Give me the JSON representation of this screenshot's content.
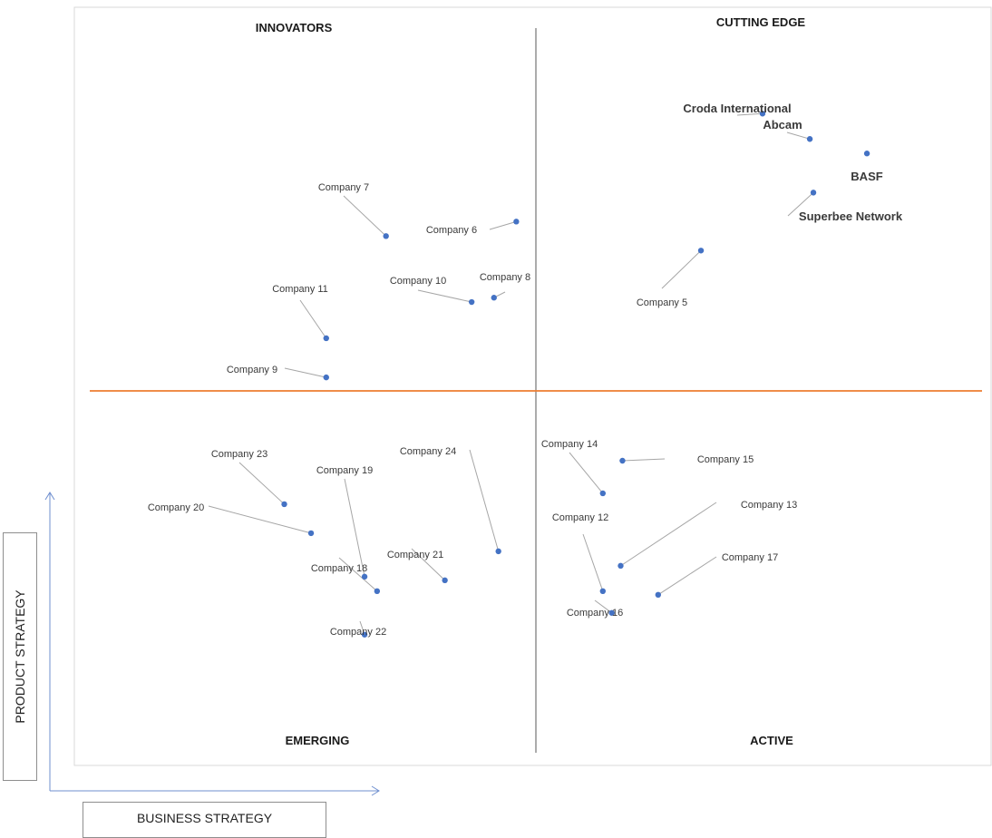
{
  "chart_data": {
    "type": "scatter",
    "xlabel": "BUSINESS STRATEGY",
    "ylabel": "PRODUCT STRATEGY",
    "quadrants": {
      "top_left": "INNOVATORS",
      "top_right": "CUTTING EDGE",
      "bottom_left": "EMERGING",
      "bottom_right": "ACTIVE"
    },
    "colors": {
      "point": "#4472c4",
      "horizontal_divider": "#ed7d31",
      "vertical_divider": "#7f7f7f"
    },
    "points": [
      {
        "name": "Croda International",
        "x": 7.54,
        "y": 8.82,
        "bold": true
      },
      {
        "name": "Abcam",
        "x": 8.07,
        "y": 8.47,
        "bold": true
      },
      {
        "name": "BASF",
        "x": 8.71,
        "y": 8.27,
        "bold": true
      },
      {
        "name": "Superbee Network",
        "x": 8.11,
        "y": 7.73,
        "bold": true
      },
      {
        "name": "Company 5",
        "x": 6.85,
        "y": 6.93,
        "bold": false
      },
      {
        "name": "Company 6",
        "x": 4.78,
        "y": 7.33,
        "bold": false
      },
      {
        "name": "Company 7",
        "x": 3.32,
        "y": 7.13,
        "bold": false
      },
      {
        "name": "Company 8",
        "x": 4.53,
        "y": 6.28,
        "bold": false
      },
      {
        "name": "Company 9",
        "x": 2.65,
        "y": 5.18,
        "bold": false
      },
      {
        "name": "Company 10",
        "x": 4.28,
        "y": 6.22,
        "bold": false
      },
      {
        "name": "Company 11",
        "x": 2.65,
        "y": 5.72,
        "bold": false
      },
      {
        "name": "Company 12",
        "x": 5.75,
        "y": 2.23,
        "bold": false
      },
      {
        "name": "Company 13",
        "x": 5.95,
        "y": 2.58,
        "bold": false
      },
      {
        "name": "Company 14",
        "x": 5.75,
        "y": 3.58,
        "bold": false
      },
      {
        "name": "Company 15",
        "x": 5.97,
        "y": 4.03,
        "bold": false
      },
      {
        "name": "Company 16",
        "x": 5.85,
        "y": 1.93,
        "bold": false
      },
      {
        "name": "Company 17",
        "x": 6.37,
        "y": 2.18,
        "bold": false
      },
      {
        "name": "Company 18",
        "x": 3.22,
        "y": 2.23,
        "bold": false
      },
      {
        "name": "Company 19",
        "x": 3.08,
        "y": 2.43,
        "bold": false
      },
      {
        "name": "Company 20",
        "x": 2.48,
        "y": 3.03,
        "bold": false
      },
      {
        "name": "Company 21",
        "x": 3.98,
        "y": 2.38,
        "bold": false
      },
      {
        "name": "Company 22",
        "x": 3.08,
        "y": 1.63,
        "bold": false
      },
      {
        "name": "Company 23",
        "x": 2.18,
        "y": 3.43,
        "bold": false
      },
      {
        "name": "Company 24",
        "x": 4.58,
        "y": 2.78,
        "bold": false
      }
    ]
  }
}
